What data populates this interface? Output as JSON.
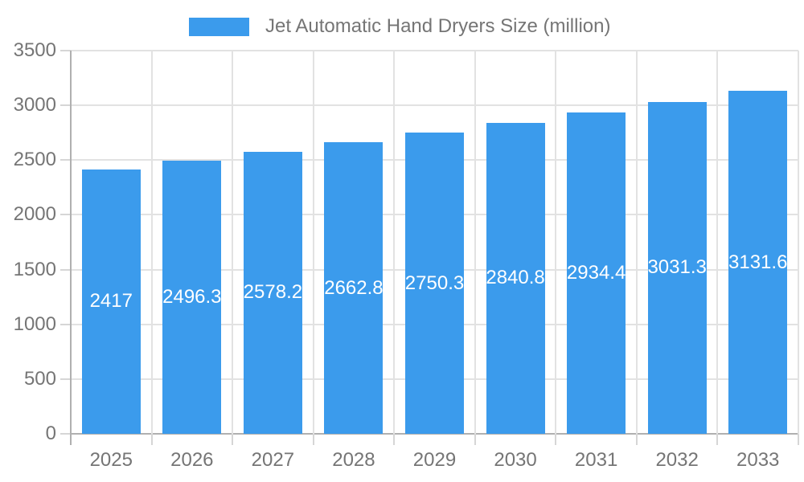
{
  "legend": {
    "label": "Jet Automatic Hand Dryers Size (million)"
  },
  "colors": {
    "bar": "#3b9bec",
    "axis_text": "#757575",
    "value_text": "#ffffff",
    "grid_line": "#e2e2e2",
    "axis_line": "#b0b0b0",
    "tick_line": "#d6d6d6",
    "background": "#ffffff"
  },
  "chart_data": {
    "type": "bar",
    "title": "Jet Automatic Hand Dryers Size (million)",
    "categories": [
      "2025",
      "2026",
      "2027",
      "2028",
      "2029",
      "2030",
      "2031",
      "2032",
      "2033"
    ],
    "values": [
      2417,
      2496.3,
      2578.2,
      2662.8,
      2750.3,
      2840.8,
      2934.4,
      3031.3,
      3131.6
    ],
    "value_labels": [
      "2417",
      "2496.3",
      "2578.2",
      "2662.8",
      "2750.3",
      "2840.8",
      "2934.4",
      "3031.3",
      "3131.6"
    ],
    "xlabel": "",
    "ylabel": "",
    "ylim": [
      0,
      3500
    ],
    "ytick_step": 500,
    "grid": true,
    "legend_position": "top-center",
    "value_label_position": "inside-center"
  }
}
